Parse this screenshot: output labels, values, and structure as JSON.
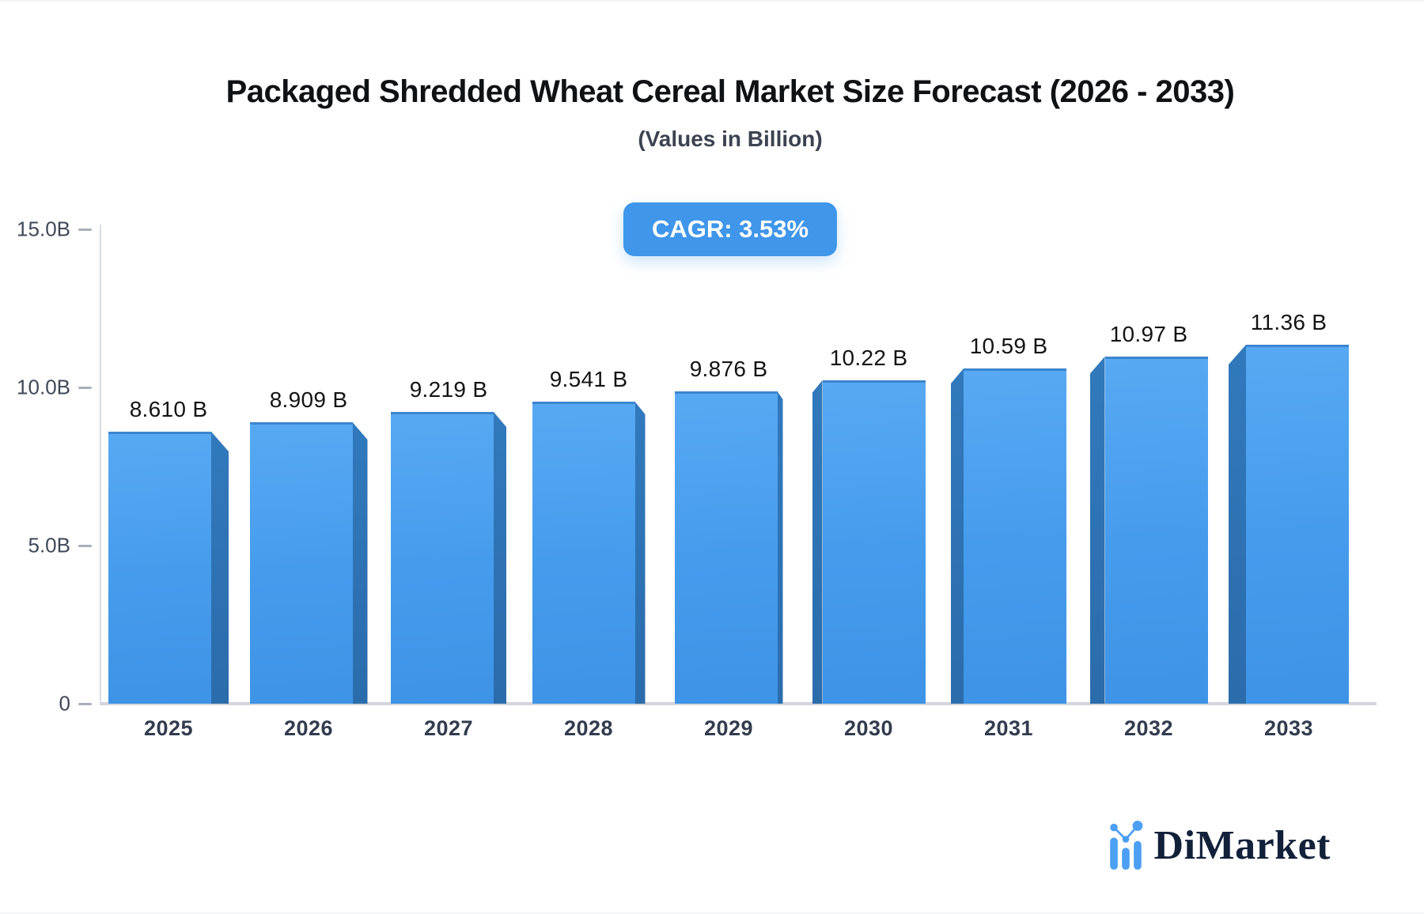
{
  "title": "Packaged Shredded Wheat Cereal Market Size Forecast (2026 - 2033)",
  "subtitle": "(Values in Billion)",
  "badge": {
    "label": "CAGR: 3.53%"
  },
  "chart_data": {
    "type": "bar",
    "title": "Packaged Shredded Wheat Cereal Market Size Forecast (2026 - 2033)",
    "subtitle": "(Values in Billion)",
    "categories": [
      "2025",
      "2026",
      "2027",
      "2028",
      "2029",
      "2030",
      "2031",
      "2032",
      "2033"
    ],
    "values": [
      8.61,
      8.909,
      9.219,
      9.541,
      9.876,
      10.22,
      10.59,
      10.97,
      11.36
    ],
    "value_labels": [
      "8.610 B",
      "8.909 B",
      "9.219 B",
      "9.541 B",
      "9.876 B",
      "10.22 B",
      "10.59 B",
      "10.97 B",
      "11.36 B"
    ],
    "y_ticks": [
      {
        "label": "15.0B",
        "value": 15
      },
      {
        "label": "10.0B",
        "value": 10
      },
      {
        "label": "5.0B",
        "value": 5
      },
      {
        "label": "0",
        "value": 0
      }
    ],
    "ylim": [
      0,
      15
    ],
    "xlabel": "",
    "ylabel": "",
    "grid": false,
    "legend": "none",
    "style": "3d-perspective-columns"
  },
  "colors": {
    "bar_face_top": "#58a9f3",
    "bar_face_mid": "#459bec",
    "bar_face_bottom": "#3e93e6",
    "bar_side_top": "#3179bd",
    "bar_side_bottom": "#2b6cab",
    "bar_top_edge": "#3a88d8",
    "badge_bg": "#3f96ea",
    "badge_text": "#ffffff",
    "axis": "#d7dadf",
    "y_label": "#3f4957",
    "x_label": "#323c4e",
    "value_label": "#141414",
    "title": "#101113",
    "subtitle": "#3c4350",
    "logo_blue": "#4b9ff4",
    "logo_text": "#13203a"
  },
  "logo": {
    "text": "DiMarket",
    "icon": "bar-sparkline-icon"
  }
}
